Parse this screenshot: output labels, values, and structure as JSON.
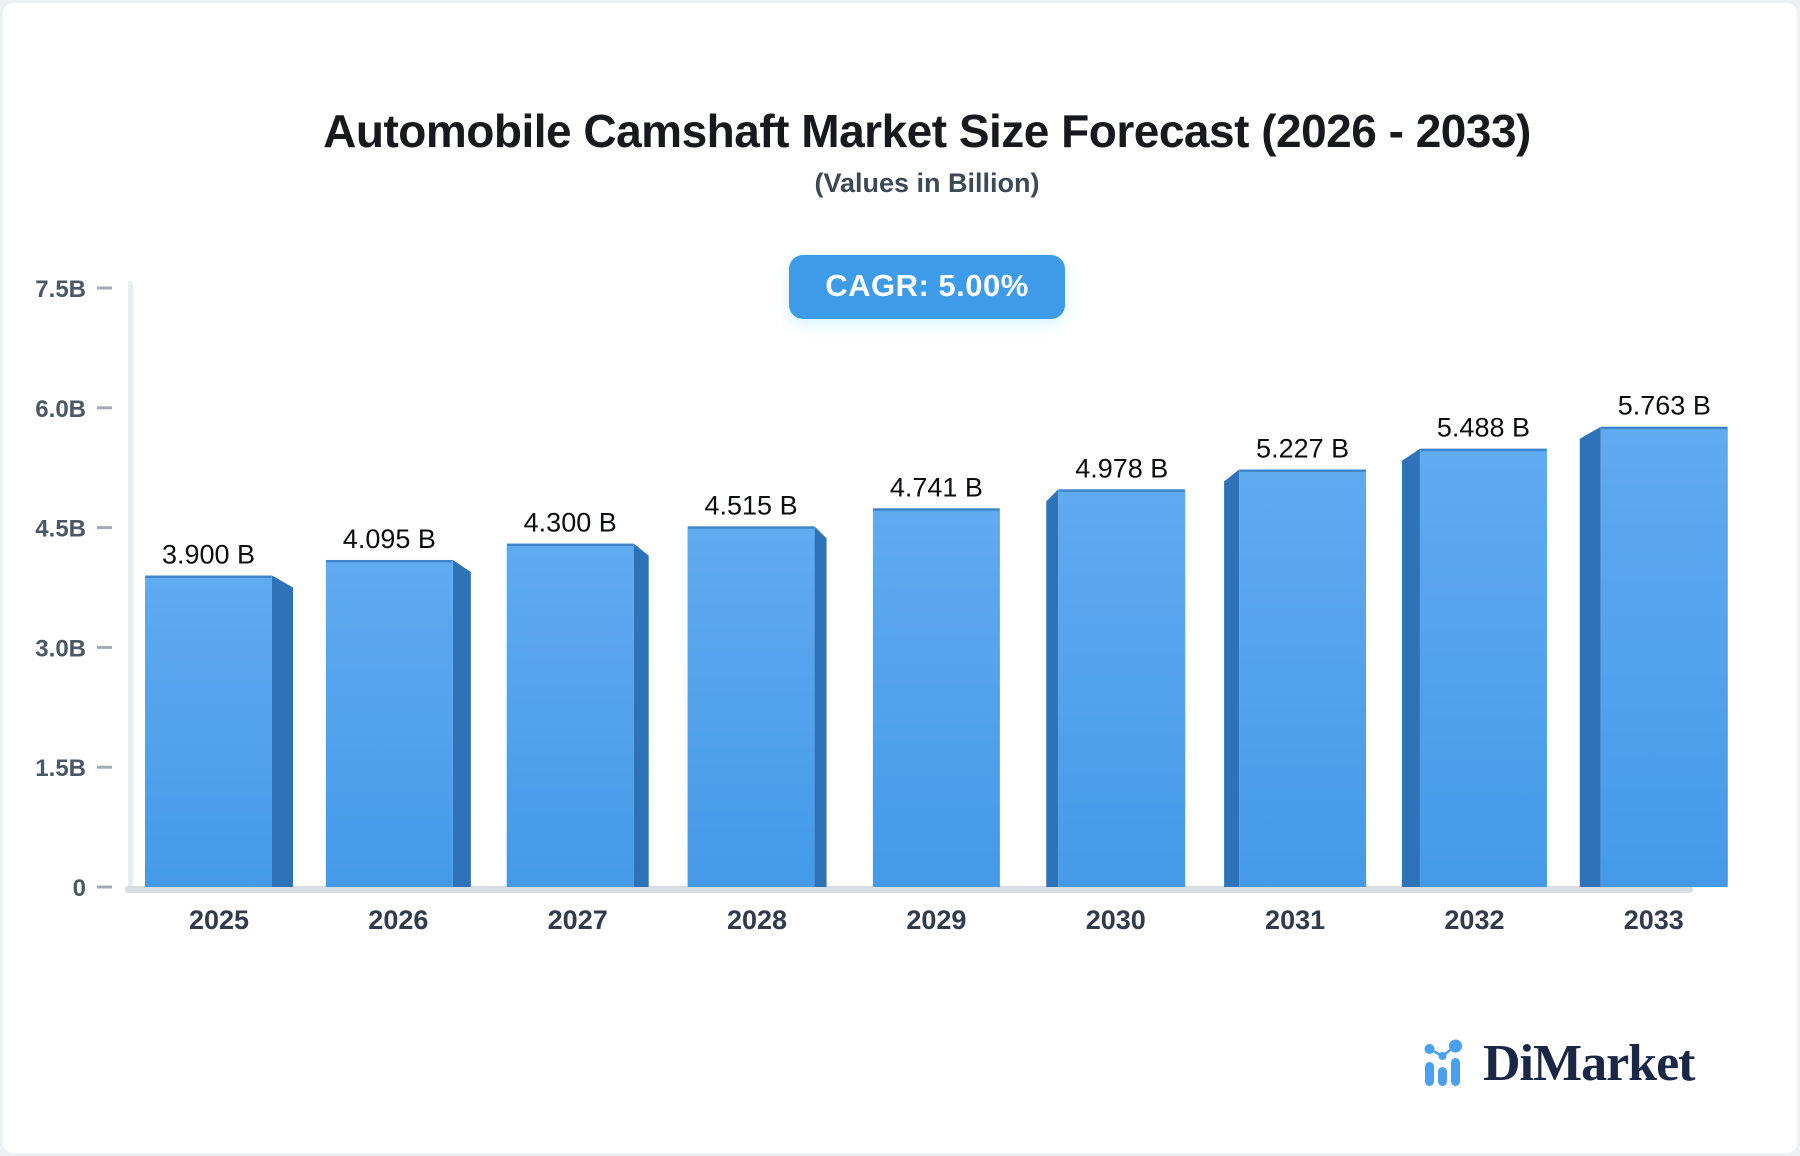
{
  "page": {
    "background": "#EEF1F4",
    "card_background": "#FFFFFF"
  },
  "header": {
    "title": "Automobile Camshaft Market Size Forecast (2026 - 2033)",
    "subtitle": "(Values in Billion)",
    "cagr_badge": "CAGR: 5.00%"
  },
  "chart_data": {
    "type": "bar",
    "title": "Automobile Camshaft Market Size Forecast (2026 - 2033)",
    "subtitle": "(Values in Billion)",
    "cagr": "5.00%",
    "categories": [
      "2025",
      "2026",
      "2027",
      "2028",
      "2029",
      "2030",
      "2031",
      "2032",
      "2033"
    ],
    "values": [
      3.9,
      4.095,
      4.3,
      4.515,
      4.741,
      4.978,
      5.227,
      5.488,
      5.763
    ],
    "value_labels": [
      "3.900 B",
      "4.095 B",
      "4.300 B",
      "4.515 B",
      "4.741 B",
      "4.978 B",
      "5.227 B",
      "5.488 B",
      "5.763 B"
    ],
    "ylim": [
      0,
      7.5
    ],
    "ytick_values": [
      0,
      1.5,
      3.0,
      4.5,
      6.0,
      7.5
    ],
    "ytick_labels": [
      "0",
      "1.5B",
      "3.0B",
      "4.5B",
      "6.0B",
      "7.5B"
    ],
    "xlabel": "",
    "ylabel": "",
    "grid": false,
    "legend": false,
    "bar_style": "3d-perspective",
    "bar_colors": {
      "face_top": "#60AAF0",
      "face_bottom": "#459AE8",
      "side": "#2E73B7",
      "top_edge": "#3D84CB"
    }
  },
  "footer": {
    "logo_text": "DiMarket"
  },
  "colors": {
    "accent_blue": "#3E9BEA",
    "logo_text": "#1A2845",
    "logo_icon": "#4AA0EE",
    "axis_line": "#E9ECF0",
    "baseline": "#D9DCE1",
    "tick": "#A4ABB5",
    "y_label": "#4B5766",
    "x_label": "#313B4D",
    "value_label": "#0D0E10",
    "title": "#17191D",
    "subtitle": "#3E4957"
  }
}
